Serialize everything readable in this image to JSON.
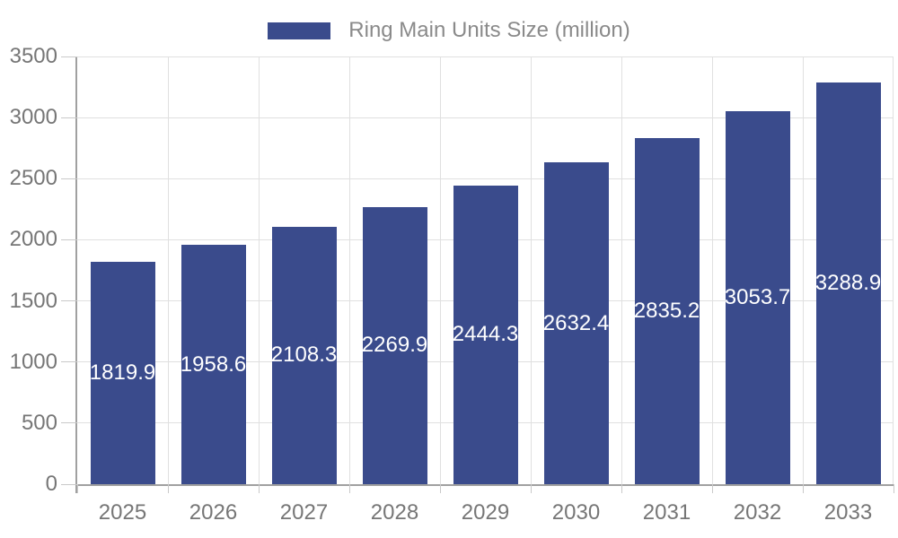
{
  "legend": {
    "items": [
      {
        "label": "Ring Main Units Size (million)",
        "color": "#3a4b8c"
      }
    ]
  },
  "chart_data": {
    "type": "bar",
    "title": "Ring Main Units Size (million)",
    "series_name": "Ring Main Units Size (million)",
    "categories": [
      "2025",
      "2026",
      "2027",
      "2028",
      "2029",
      "2030",
      "2031",
      "2032",
      "2033"
    ],
    "values": [
      1819.9,
      1958.6,
      2108.3,
      2269.9,
      2444.3,
      2632.4,
      2835.2,
      3053.7,
      3288.9
    ],
    "value_label_decimals": 1,
    "xlabel": "",
    "ylabel": "",
    "ylim": [
      0,
      3500
    ],
    "y_ticks": [
      0,
      500,
      1000,
      1500,
      2000,
      2500,
      3000,
      3500
    ],
    "grid": true,
    "legend_position": "top",
    "colors": {
      "bar": "#3a4b8c",
      "value_label": "#ffffff",
      "axis_line": "#a0a0a0",
      "gridline": "#e0e0e0",
      "tick": "#c9c9c9",
      "axis_label_text": "#767676",
      "legend_text": "#8a8a8a",
      "background": "#ffffff"
    }
  }
}
